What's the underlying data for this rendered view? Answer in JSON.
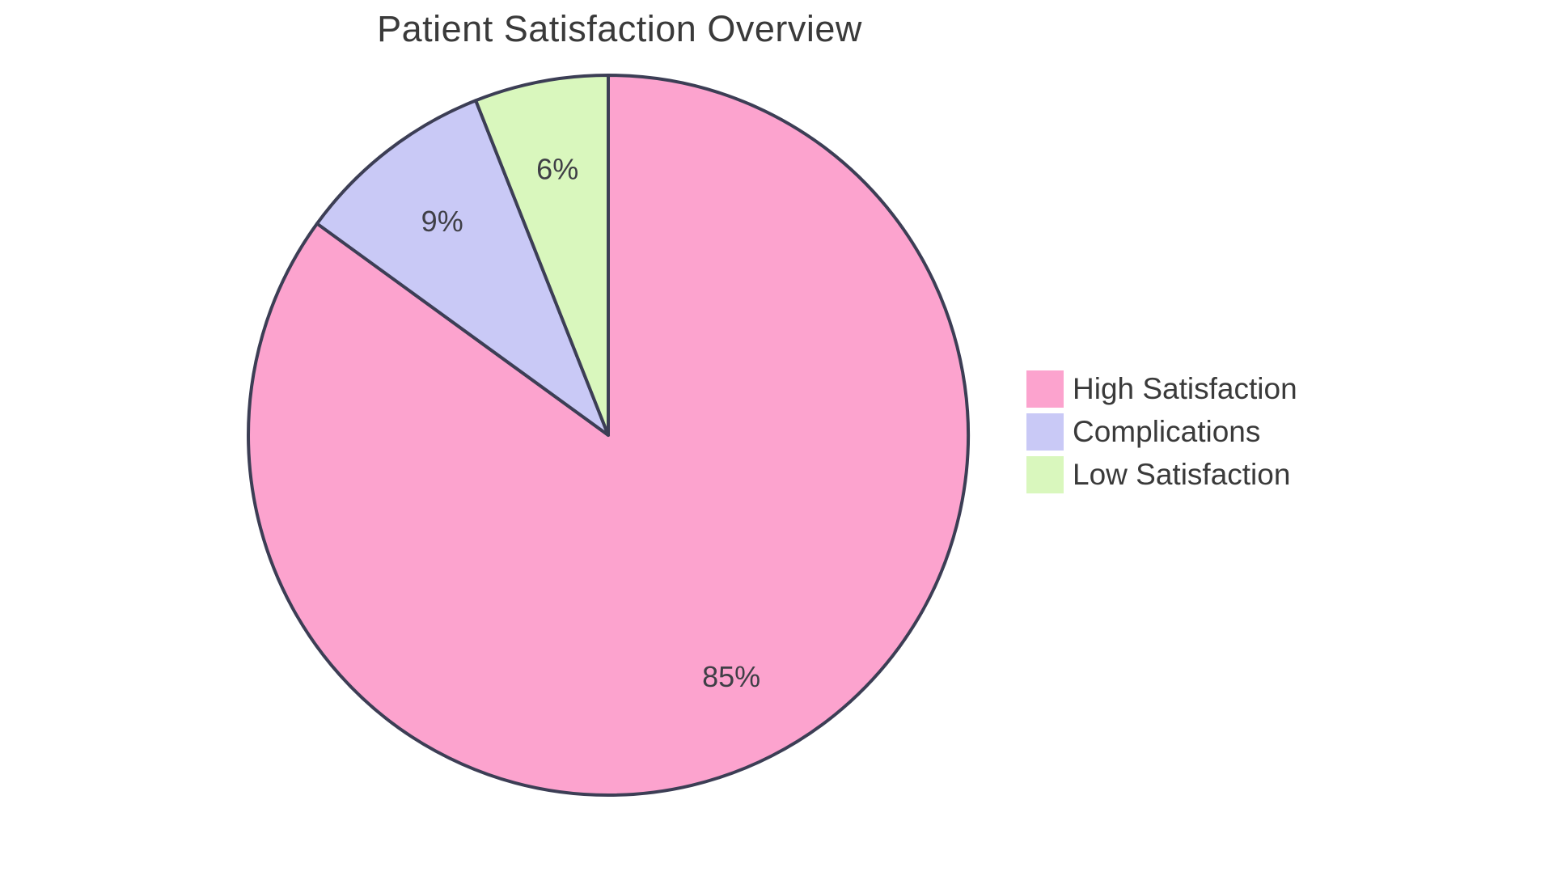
{
  "chart_title": "Patient Satisfaction Overview",
  "colors": {
    "background": "#FFFFFF",
    "title_text": "#3A3A3A",
    "slice_label_text": "#3F3F46",
    "legend_text": "#3A3A3A",
    "slice_border": "#3C3E55"
  },
  "chart_data": {
    "type": "pie",
    "title": "Patient Satisfaction Overview",
    "labels": [
      "High Satisfaction",
      "Complications",
      "Low Satisfaction"
    ],
    "values": [
      85,
      9,
      6
    ],
    "unit": "percent",
    "slice_labels": [
      "85%",
      "9%",
      "6%"
    ],
    "slice_colors": [
      "#FCA3CE",
      "#C9C9F6",
      "#D9F7BD"
    ],
    "slice_border_color": "#3C3E55",
    "slice_border_width": 4,
    "start_angle_deg": -90,
    "direction": "clockwise",
    "legend_position": "right",
    "grid": false
  }
}
